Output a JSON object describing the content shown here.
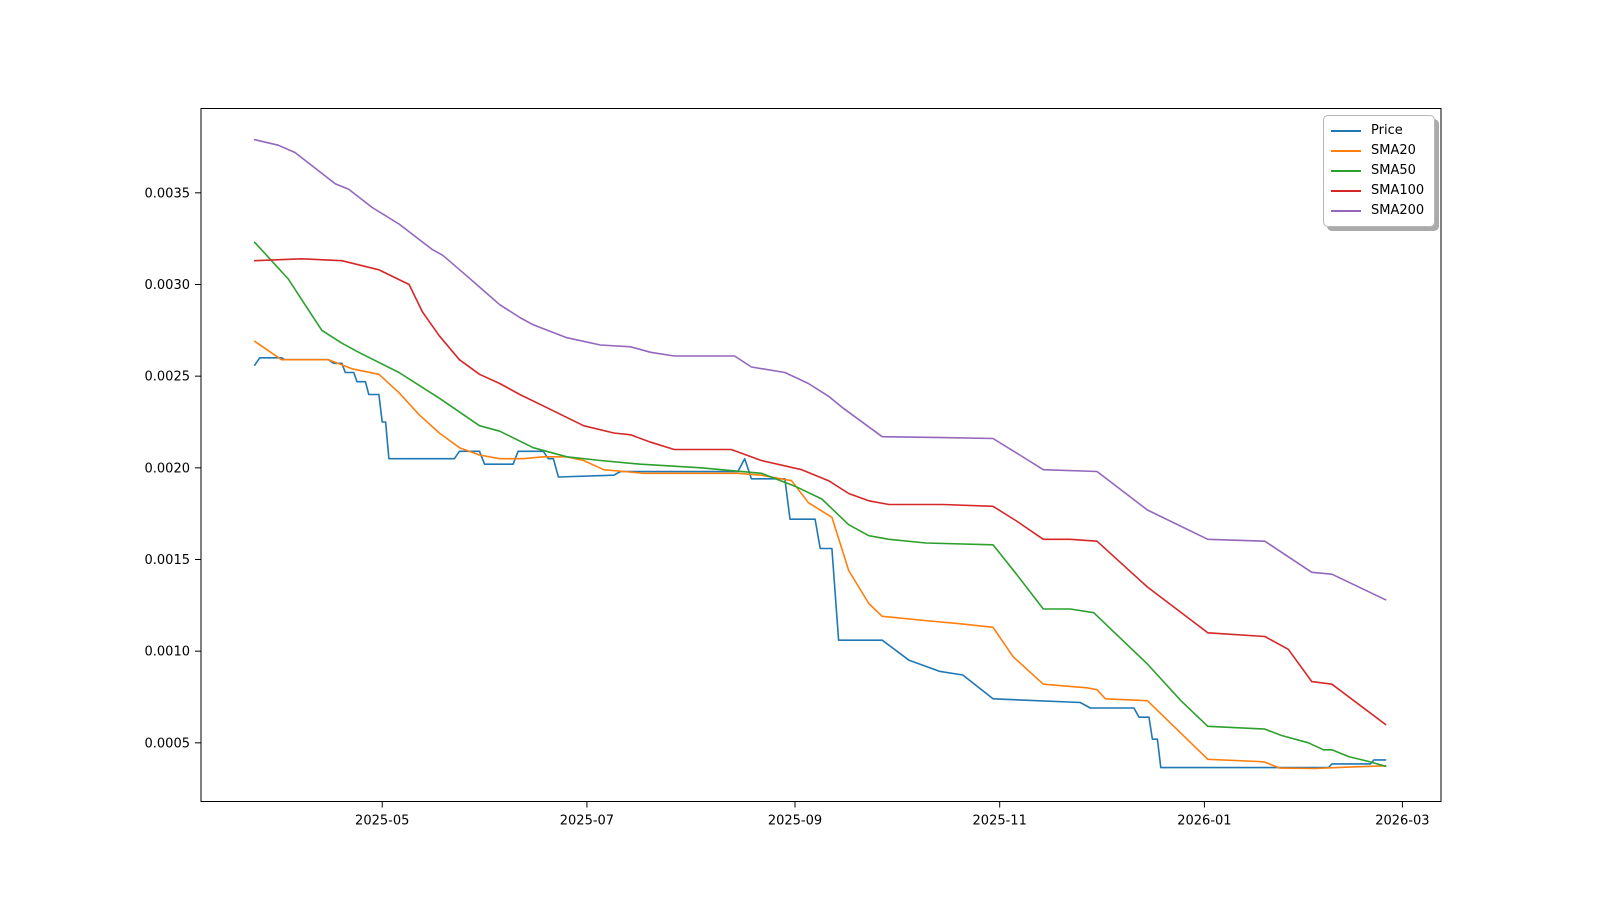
{
  "figure": {
    "background_color": "#ffffff",
    "axes_edge_color": "#000000"
  },
  "legend": {
    "position": "upper-right"
  },
  "chart_data": {
    "type": "line",
    "title": "",
    "xlabel": "",
    "ylabel": "",
    "grid": false,
    "legend_position": "upper right",
    "x_unit": "days since 2025-03-24 (weekly price series with SMAs)",
    "xlim_days": [
      -16,
      353.5
    ],
    "ylim": [
      0.00018,
      0.00396
    ],
    "x_ticks": [
      {
        "day": 38,
        "label": "2025-05"
      },
      {
        "day": 99,
        "label": "2025-07"
      },
      {
        "day": 161,
        "label": "2025-09"
      },
      {
        "day": 222,
        "label": "2025-11"
      },
      {
        "day": 283,
        "label": "2026-01"
      },
      {
        "day": 342,
        "label": "2026-03"
      }
    ],
    "y_ticks": [
      {
        "value": 0.0005,
        "label": "0.0005"
      },
      {
        "value": 0.001,
        "label": "0.0010"
      },
      {
        "value": 0.0015,
        "label": "0.0015"
      },
      {
        "value": 0.002,
        "label": "0.0020"
      },
      {
        "value": 0.0025,
        "label": "0.0025"
      },
      {
        "value": 0.003,
        "label": "0.0030"
      },
      {
        "value": 0.0035,
        "label": "0.0035"
      }
    ],
    "series": [
      {
        "name": "Price",
        "color": "#1f77b4",
        "points": [
          [
            0,
            0.00256
          ],
          [
            1.5,
            0.0026
          ],
          [
            8,
            0.0026
          ],
          [
            9,
            0.00259
          ],
          [
            22,
            0.00259
          ],
          [
            23.5,
            0.00257
          ],
          [
            26,
            0.00257
          ],
          [
            27,
            0.00252
          ],
          [
            29.5,
            0.00252
          ],
          [
            30.5,
            0.00247
          ],
          [
            33,
            0.00247
          ],
          [
            34,
            0.0024
          ],
          [
            37,
            0.0024
          ],
          [
            38,
            0.00225
          ],
          [
            39,
            0.00225
          ],
          [
            40,
            0.00205
          ],
          [
            59.5,
            0.00205
          ],
          [
            61,
            0.00209
          ],
          [
            67,
            0.00209
          ],
          [
            68.5,
            0.00202
          ],
          [
            77,
            0.00202
          ],
          [
            78.5,
            0.00209
          ],
          [
            86,
            0.00209
          ],
          [
            87.5,
            0.00205
          ],
          [
            89,
            0.00205
          ],
          [
            90.5,
            0.00195
          ],
          [
            107,
            0.00196
          ],
          [
            109,
            0.00198
          ],
          [
            144,
            0.00198
          ],
          [
            146,
            0.00205
          ],
          [
            148,
            0.00194
          ],
          [
            158,
            0.00194
          ],
          [
            159.5,
            0.00172
          ],
          [
            167,
            0.00172
          ],
          [
            168.5,
            0.00156
          ],
          [
            172,
            0.00156
          ],
          [
            174,
            0.00106
          ],
          [
            187,
            0.00106
          ],
          [
            195,
            0.00095
          ],
          [
            204,
            0.00089
          ],
          [
            211,
            0.00087
          ],
          [
            220,
            0.00074
          ],
          [
            246,
            0.00072
          ],
          [
            249,
            0.00069
          ],
          [
            262,
            0.00069
          ],
          [
            263.5,
            0.00064
          ],
          [
            266.5,
            0.00064
          ],
          [
            267.5,
            0.00052
          ],
          [
            269,
            0.00052
          ],
          [
            270,
            0.000365
          ],
          [
            320,
            0.000365
          ],
          [
            321,
            0.000385
          ],
          [
            332.5,
            0.000385
          ],
          [
            333.5,
            0.000407
          ],
          [
            337,
            0.000407
          ]
        ]
      },
      {
        "name": "SMA20",
        "color": "#ff7f0e",
        "points": [
          [
            0,
            0.00269
          ],
          [
            8,
            0.00259
          ],
          [
            22,
            0.00259
          ],
          [
            29,
            0.00254
          ],
          [
            37,
            0.00251
          ],
          [
            43,
            0.00241
          ],
          [
            49,
            0.00229
          ],
          [
            55,
            0.00219
          ],
          [
            61,
            0.00211
          ],
          [
            67,
            0.00207
          ],
          [
            73,
            0.00205
          ],
          [
            80,
            0.00205
          ],
          [
            86,
            0.00206
          ],
          [
            93,
            0.00206
          ],
          [
            98,
            0.00204
          ],
          [
            104,
            0.00199
          ],
          [
            110,
            0.00198
          ],
          [
            116,
            0.00197
          ],
          [
            144,
            0.00197
          ],
          [
            151,
            0.00196
          ],
          [
            160,
            0.00193
          ],
          [
            165,
            0.00181
          ],
          [
            172,
            0.00173
          ],
          [
            177,
            0.00144
          ],
          [
            183,
            0.00126
          ],
          [
            187,
            0.00119
          ],
          [
            198,
            0.00117
          ],
          [
            210,
            0.00115
          ],
          [
            220,
            0.00113
          ],
          [
            226,
            0.00097
          ],
          [
            235,
            0.00082
          ],
          [
            248,
            0.0008
          ],
          [
            251,
            0.00079
          ],
          [
            253.5,
            0.00074
          ],
          [
            266,
            0.00073
          ],
          [
            284,
            0.00041
          ],
          [
            299,
            0.000398
          ],
          [
            301,
            0.000395
          ],
          [
            303,
            0.00038
          ],
          [
            305.5,
            0.000362
          ],
          [
            316,
            0.00036
          ],
          [
            325,
            0.000367
          ],
          [
            337,
            0.000375
          ]
        ]
      },
      {
        "name": "SMA50",
        "color": "#2ca02c",
        "points": [
          [
            0,
            0.00323
          ],
          [
            5,
            0.00313
          ],
          [
            10,
            0.00303
          ],
          [
            15,
            0.00289
          ],
          [
            20,
            0.00275
          ],
          [
            26,
            0.00268
          ],
          [
            31,
            0.00263
          ],
          [
            43,
            0.00252
          ],
          [
            55,
            0.00238
          ],
          [
            67,
            0.00223
          ],
          [
            73,
            0.0022
          ],
          [
            83,
            0.00211
          ],
          [
            93,
            0.00206
          ],
          [
            103,
            0.00204
          ],
          [
            115,
            0.00202
          ],
          [
            133,
            0.002
          ],
          [
            151,
            0.00197
          ],
          [
            161,
            0.0019
          ],
          [
            169,
            0.00183
          ],
          [
            177,
            0.00169
          ],
          [
            183,
            0.00163
          ],
          [
            189,
            0.00161
          ],
          [
            200,
            0.00159
          ],
          [
            220,
            0.00158
          ],
          [
            227,
            0.00142
          ],
          [
            235,
            0.00123
          ],
          [
            243,
            0.00123
          ],
          [
            250,
            0.00121
          ],
          [
            258,
            0.00107
          ],
          [
            266,
            0.00093
          ],
          [
            276,
            0.00073
          ],
          [
            284,
            0.00059
          ],
          [
            301,
            0.000575
          ],
          [
            306,
            0.00054
          ],
          [
            314,
            0.0005
          ],
          [
            318.5,
            0.000462
          ],
          [
            321,
            0.000462
          ],
          [
            326,
            0.000425
          ],
          [
            332,
            0.000398
          ],
          [
            337,
            0.000372
          ]
        ]
      },
      {
        "name": "SMA100",
        "color": "#d62728",
        "points": [
          [
            0,
            0.00313
          ],
          [
            14,
            0.00314
          ],
          [
            26,
            0.00313
          ],
          [
            37,
            0.00308
          ],
          [
            46,
            0.003
          ],
          [
            50,
            0.00285
          ],
          [
            55,
            0.00272
          ],
          [
            61,
            0.00259
          ],
          [
            67,
            0.00251
          ],
          [
            73,
            0.00246
          ],
          [
            79,
            0.0024
          ],
          [
            88,
            0.00232
          ],
          [
            98,
            0.00223
          ],
          [
            107,
            0.00219
          ],
          [
            112,
            0.00218
          ],
          [
            118,
            0.00214
          ],
          [
            125,
            0.0021
          ],
          [
            142,
            0.0021
          ],
          [
            151,
            0.00204
          ],
          [
            163,
            0.00199
          ],
          [
            171,
            0.00193
          ],
          [
            177,
            0.00186
          ],
          [
            183,
            0.00182
          ],
          [
            189,
            0.0018
          ],
          [
            205,
            0.0018
          ],
          [
            220,
            0.00179
          ],
          [
            227,
            0.00171
          ],
          [
            235,
            0.00161
          ],
          [
            243,
            0.00161
          ],
          [
            251,
            0.0016
          ],
          [
            266,
            0.00135
          ],
          [
            284,
            0.0011
          ],
          [
            301,
            0.00108
          ],
          [
            308,
            0.00101
          ],
          [
            315,
            0.000834
          ],
          [
            321,
            0.00082
          ],
          [
            337,
            0.0006
          ]
        ]
      },
      {
        "name": "SMA200",
        "color": "#9467bd",
        "points": [
          [
            0,
            0.00379
          ],
          [
            7,
            0.00376
          ],
          [
            12,
            0.00372
          ],
          [
            19,
            0.00362
          ],
          [
            24,
            0.00355
          ],
          [
            28,
            0.00352
          ],
          [
            35,
            0.00342
          ],
          [
            43,
            0.00333
          ],
          [
            53,
            0.00319
          ],
          [
            56,
            0.00316
          ],
          [
            63,
            0.00305
          ],
          [
            68,
            0.00297
          ],
          [
            73,
            0.00289
          ],
          [
            79,
            0.00282
          ],
          [
            83,
            0.00278
          ],
          [
            93,
            0.00271
          ],
          [
            103,
            0.00267
          ],
          [
            112,
            0.00266
          ],
          [
            118,
            0.00263
          ],
          [
            125,
            0.00261
          ],
          [
            143,
            0.00261
          ],
          [
            148,
            0.00255
          ],
          [
            158,
            0.00252
          ],
          [
            165,
            0.00246
          ],
          [
            171,
            0.00239
          ],
          [
            175,
            0.00233
          ],
          [
            187,
            0.00217
          ],
          [
            205,
            0.002165
          ],
          [
            220,
            0.00216
          ],
          [
            228,
            0.00207
          ],
          [
            235,
            0.00199
          ],
          [
            251,
            0.00198
          ],
          [
            266,
            0.00177
          ],
          [
            284,
            0.00161
          ],
          [
            301,
            0.0016
          ],
          [
            315,
            0.00143
          ],
          [
            321,
            0.00142
          ],
          [
            337,
            0.00128
          ]
        ]
      }
    ]
  }
}
